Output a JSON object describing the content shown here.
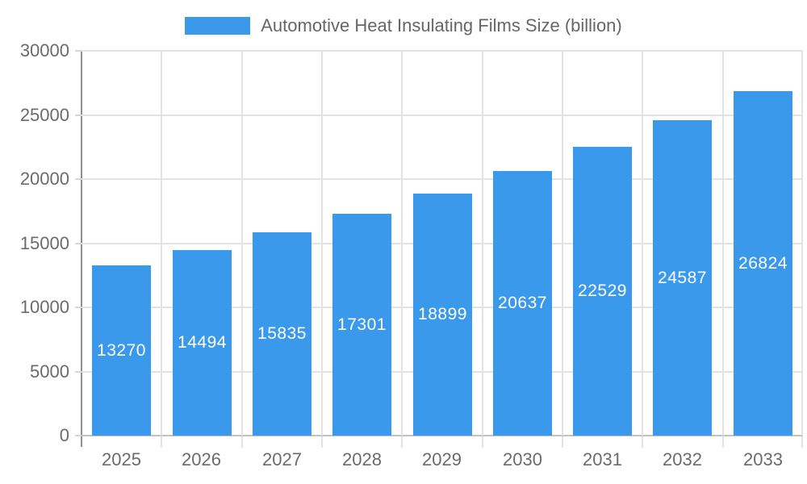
{
  "chart_data": {
    "type": "bar",
    "title": "Automotive Heat Insulating Films Size (billion)",
    "categories": [
      "2025",
      "2026",
      "2027",
      "2028",
      "2029",
      "2030",
      "2031",
      "2032",
      "2033"
    ],
    "values": [
      13270,
      14494,
      15835,
      17301,
      18899,
      20637,
      22529,
      24587,
      26824
    ],
    "value_labels": [
      "13270",
      "14494",
      "15835",
      "17301",
      "18899",
      "20637",
      "22529",
      "24587",
      "26824"
    ],
    "xlabel": "",
    "ylabel": "",
    "ylim": [
      0,
      30000
    ],
    "y_ticks": [
      0,
      5000,
      10000,
      15000,
      20000,
      25000,
      30000
    ],
    "y_tick_labels": [
      "0",
      "5000",
      "10000",
      "15000",
      "20000",
      "25000",
      "30000"
    ],
    "grid": true,
    "legend_position": "top",
    "colors": {
      "bar_fill": "#3B99EC",
      "bar_value_text": "#FFFFFF",
      "legend_text": "#666666",
      "axis_text": "#6B6B6B",
      "grid_line": "#E3E3E3",
      "y_axis_line": "#909090",
      "x_axis_line": "#C2C2C2",
      "tick_mark": "#D6D6D6",
      "background": "#FFFFFF"
    }
  }
}
